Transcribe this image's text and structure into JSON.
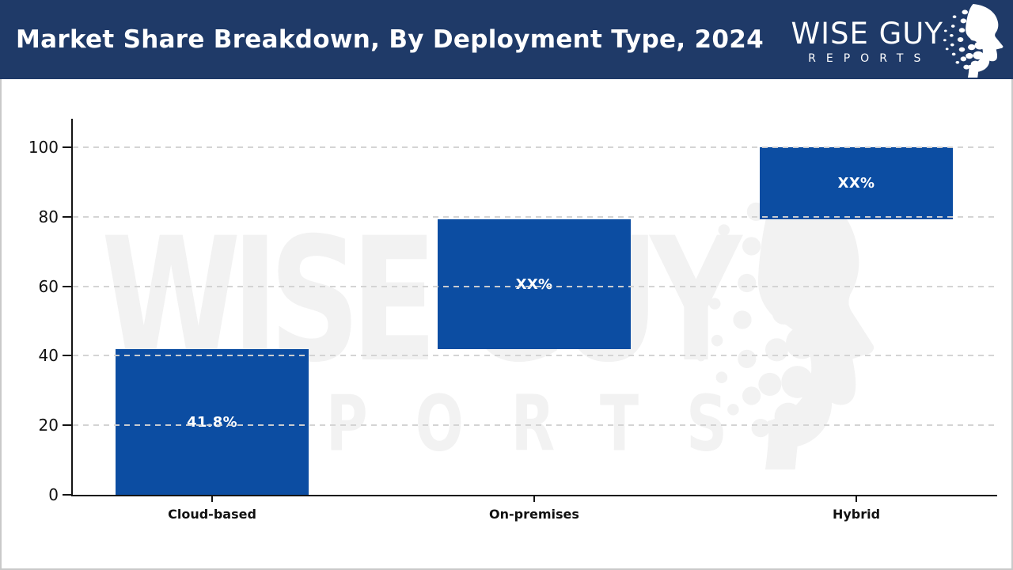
{
  "header": {
    "title": "Market Share Breakdown, By Deployment Type, 2024",
    "logo": {
      "line1": "WISE GUY",
      "line2": "REPORTS"
    }
  },
  "watermark": {
    "line1": "WISE GUY",
    "line2": "REPORTS"
  },
  "chart_data": {
    "type": "bar",
    "subtype": "waterfall",
    "title": "Market Share Breakdown, By Deployment Type, 2024",
    "categories": [
      "Cloud-based",
      "On-premises",
      "Hybrid"
    ],
    "segments": [
      {
        "category": "Cloud-based",
        "label": "41.8%",
        "start": 0,
        "end": 41.8
      },
      {
        "category": "On-premises",
        "label": "XX%",
        "start": 41.8,
        "end": 79.2
      },
      {
        "category": "Hybrid",
        "label": "XX%",
        "start": 79.2,
        "end": 100
      }
    ],
    "yticks": [
      0,
      20,
      40,
      60,
      80,
      100
    ],
    "ylim": [
      0,
      106
    ],
    "xlabel": "",
    "ylabel": "",
    "grid": "horizontal-dashed",
    "legend": "none",
    "bar_color": "#0c4da2",
    "bar_label_color": "#ffffff"
  },
  "colors": {
    "header_bg": "#1f3a68",
    "bar": "#0c4da2",
    "grid": "#d2d2d2",
    "axis": "#141414",
    "watermark": "#f2f2f2",
    "page_border": "#c9c9c9"
  }
}
